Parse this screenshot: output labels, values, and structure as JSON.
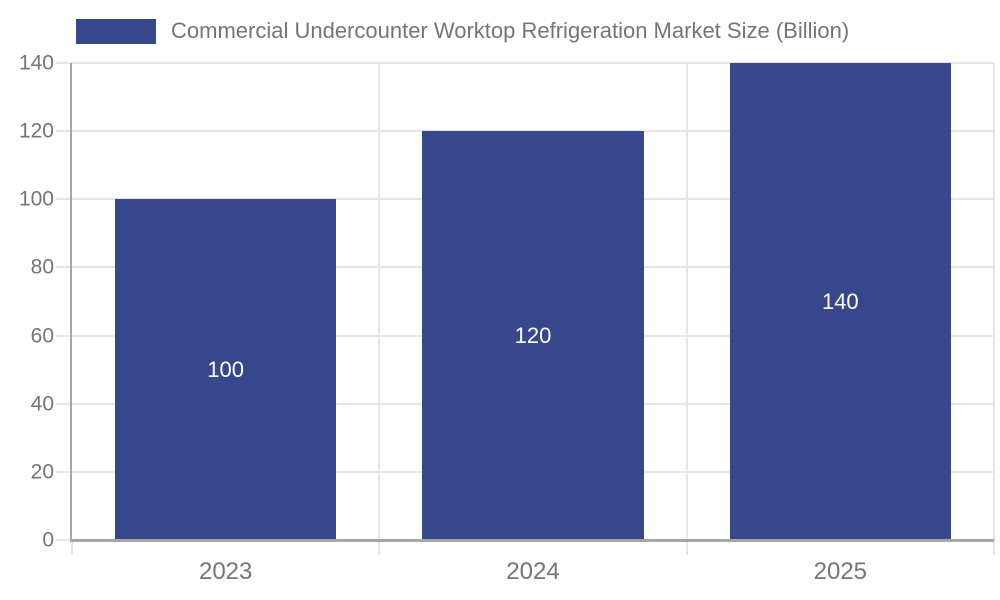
{
  "chart_data": {
    "type": "bar",
    "title": "Commercial Undercounter Worktop Refrigeration Market Size (Billion)",
    "legend": {
      "position": "top-left",
      "entries": [
        {
          "label": "Commercial Undercounter Worktop Refrigeration Market Size (Billion)",
          "color": "#36478C"
        }
      ]
    },
    "categories": [
      "2023",
      "2024",
      "2025"
    ],
    "values": [
      100,
      120,
      140
    ],
    "bar_value_labels": [
      "100",
      "120",
      "140"
    ],
    "xlabel": "",
    "ylabel": "",
    "ylim": [
      0,
      140
    ],
    "yticks": [
      0,
      20,
      40,
      60,
      80,
      100,
      120,
      140
    ],
    "grid": true,
    "bar_width_fraction": 0.72,
    "colors": {
      "bar": "#36478C",
      "bar_label": "#FFFFFF",
      "tick_label": "#757575",
      "legend_label": "#757575",
      "gridline": "#E5E5E5",
      "axis": "#A6A6A6",
      "background": "#FFFFFF"
    }
  }
}
